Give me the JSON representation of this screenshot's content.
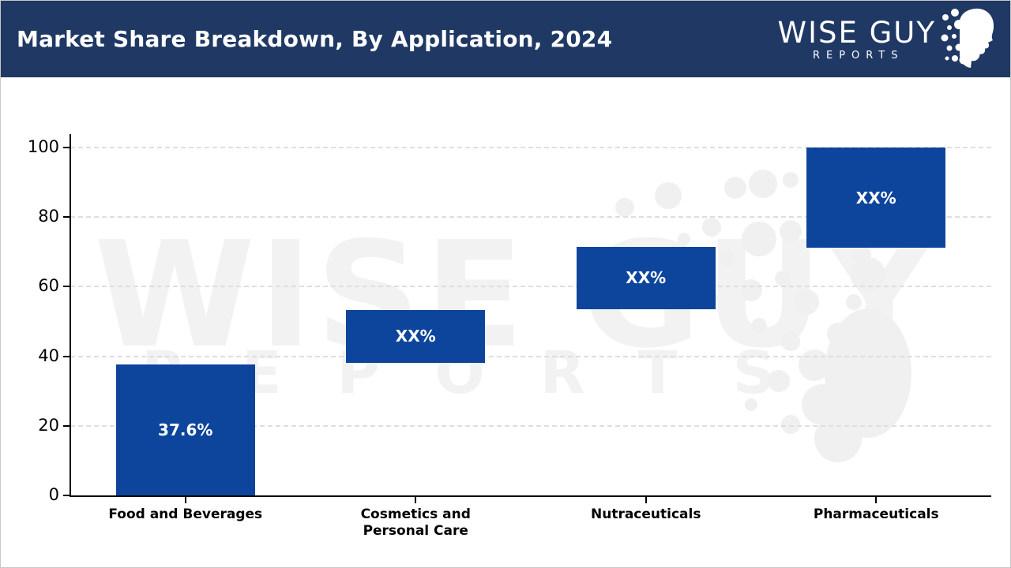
{
  "header": {
    "title": "Market Share Breakdown, By Application, 2024",
    "logo": {
      "line1": "WISE GUY",
      "line2": "REPORTS"
    }
  },
  "watermark": {
    "line1": "WISE GUY",
    "line2": "REPORTS"
  },
  "icons": {
    "logo_face_icon": "dotted-face-profile",
    "watermark_face_icon": "dotted-face-profile"
  },
  "colors": {
    "header_bg": "#1f3864",
    "bar": "#0d459c",
    "bar_label": "#ffffff",
    "grid": "#dedede",
    "axis": "#000000",
    "watermark": "#f2f2f2",
    "page_border": "#c8c8c8"
  },
  "chart_data": {
    "type": "bar",
    "subtype": "floating-waterfall",
    "title": "Market Share Breakdown, By Application, 2024",
    "xlabel": "",
    "ylabel": "",
    "ylim": [
      0,
      100
    ],
    "yticks": [
      0,
      20,
      40,
      60,
      80,
      100
    ],
    "grid": "horizontal-dashed",
    "legend": "none",
    "categories": [
      "Food and Beverages",
      "Cosmetics and\nPersonal Care",
      "Nutraceuticals",
      "Pharmaceuticals"
    ],
    "segments": [
      {
        "category": "Food and Beverages",
        "start": 0,
        "end": 37.6,
        "label": "37.6%"
      },
      {
        "category": "Cosmetics and\nPersonal Care",
        "start": 38.2,
        "end": 53.4,
        "label": "XX%"
      },
      {
        "category": "Nutraceuticals",
        "start": 53.6,
        "end": 71.4,
        "label": "XX%"
      },
      {
        "category": "Pharmaceuticals",
        "start": 71.1,
        "end": 100,
        "label": "XX%"
      }
    ]
  }
}
